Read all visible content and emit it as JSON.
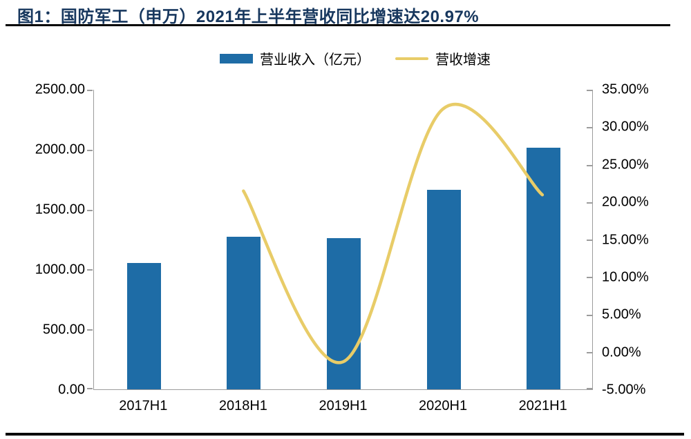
{
  "figure": {
    "title": "图1：国防军工（申万）2021年上半年营收同比增速达20.97%"
  },
  "colors": {
    "title": "#17375e",
    "bar": "#1e6ca6",
    "line": "#e8cc68",
    "axis": "#9c9c9c",
    "rule": "#000000"
  },
  "chart_data": {
    "type": "bar",
    "subtype": "combo-bar-line-dual-axis",
    "categories": [
      "2017H1",
      "2018H1",
      "2019H1",
      "2020H1",
      "2021H1"
    ],
    "series": [
      {
        "name": "营业收入（亿元）",
        "type": "bar",
        "axis": "left",
        "color": "#1e6ca6",
        "values": [
          1052,
          1276,
          1259,
          1667,
          2016
        ]
      },
      {
        "name": "营收增速",
        "type": "line",
        "axis": "right",
        "color": "#e8cc68",
        "unit": "%",
        "values": [
          null,
          21.48,
          -1.33,
          32.41,
          20.97
        ]
      }
    ],
    "left_axis": {
      "min": 0,
      "max": 2500,
      "tick_labels": [
        "2500.00",
        "2000.00",
        "1500.00",
        "1000.00",
        "500.00",
        "0.00"
      ]
    },
    "right_axis": {
      "min": -5,
      "max": 35,
      "tick_labels": [
        "35.00%",
        "30.00%",
        "25.00%",
        "20.00%",
        "15.00%",
        "10.00%",
        "5.00%",
        "0.00%",
        "-5.00%"
      ]
    },
    "grid": false,
    "legend_position": "top"
  }
}
